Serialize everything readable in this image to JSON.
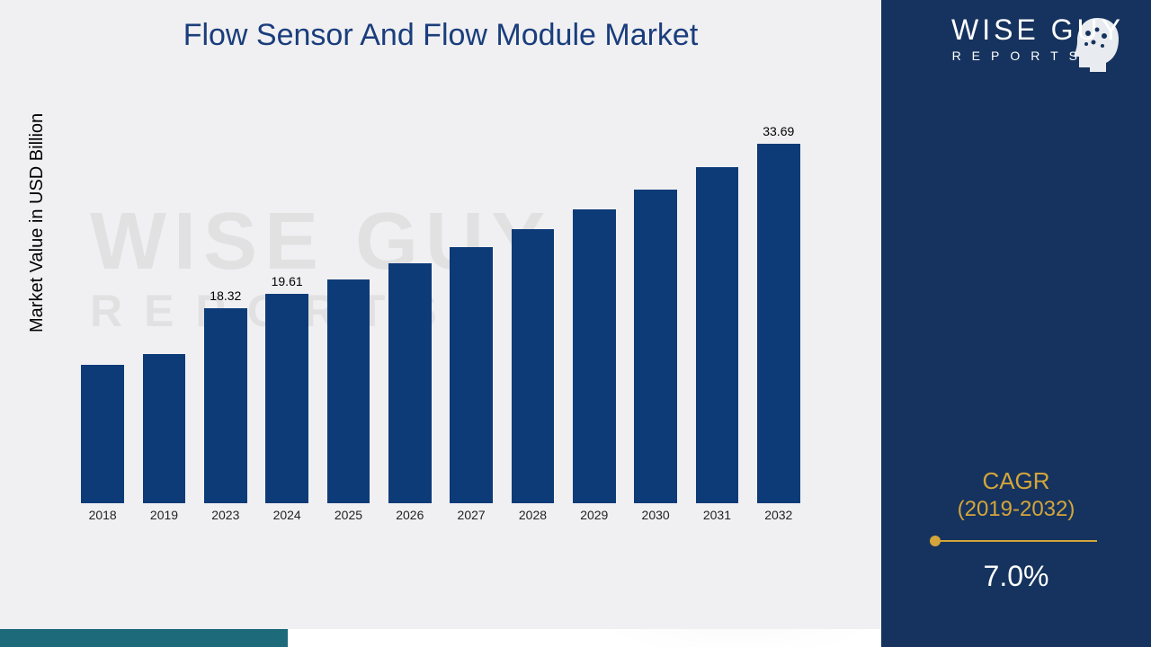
{
  "chart": {
    "title": "Flow Sensor And Flow Module Market",
    "title_color": "#1a3d7c",
    "ylabel": "Market Value in USD Billion",
    "type": "bar",
    "background_color": "#f0f0f2",
    "bar_color": "#0d3b78",
    "bar_width": 0.7,
    "categories": [
      "2018",
      "2019",
      "2023",
      "2024",
      "2025",
      "2026",
      "2027",
      "2028",
      "2029",
      "2030",
      "2031",
      "2032"
    ],
    "values": [
      13.0,
      14.0,
      18.32,
      19.61,
      20.98,
      22.45,
      24.02,
      25.71,
      27.51,
      29.43,
      31.49,
      33.69
    ],
    "value_labels": [
      "",
      "",
      "18.32",
      "19.61",
      "",
      "",
      "",
      "",
      "",
      "",
      "",
      "33.69"
    ],
    "ylim_max": 33.69,
    "tick_color": "#222222",
    "label_fontsize": 14
  },
  "side": {
    "panel_color": "#15335e",
    "logo_main": "WISE GUY",
    "logo_sub": "REPORTS",
    "cagr_label": "CAGR",
    "cagr_years": "(2019-2032)",
    "cagr_value": "7.0%",
    "accent_color": "#d4a53a"
  },
  "footer": {
    "bar_color": "#1d6a7a"
  },
  "watermark": {
    "line1": "WISE GUY",
    "line2": "REPORTS"
  }
}
